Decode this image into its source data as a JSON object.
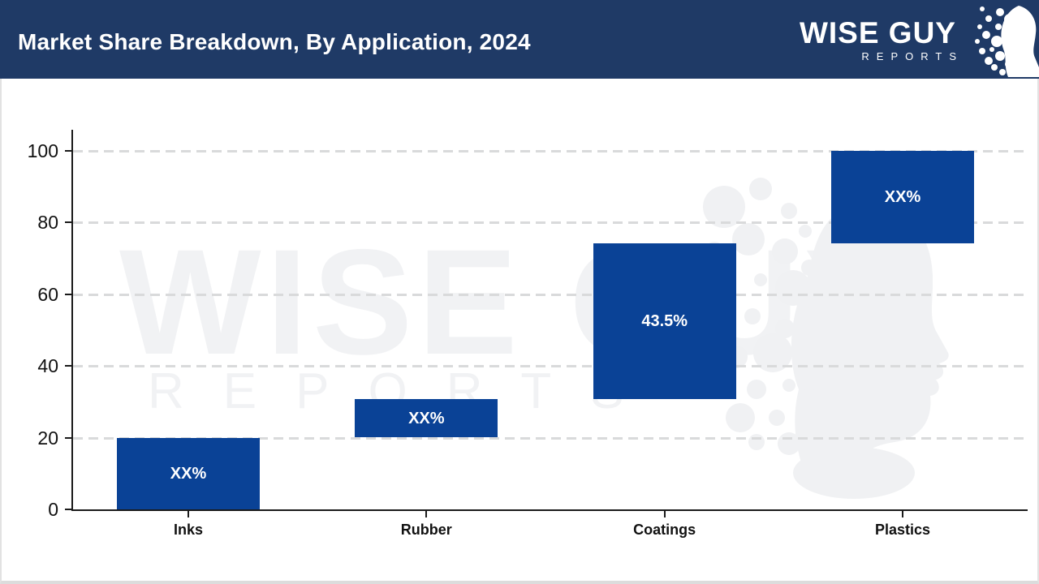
{
  "header": {
    "title": "Market Share Breakdown, By Application, 2024",
    "background": "#1f3a66",
    "logo": {
      "line1": "WISE GUY",
      "line2": "REPORTS"
    }
  },
  "watermark": {
    "line1": "WISE GUY",
    "line2": "REPORTS",
    "color": "#f1f2f4"
  },
  "chart_data": {
    "type": "bar",
    "subtype": "floating-waterfall-columns",
    "title": "Market Share Breakdown, By Application, 2024",
    "categories": [
      "Inks",
      "Rubber",
      "Coatings",
      "Plastics"
    ],
    "series": [
      {
        "name": "Market Share (%)",
        "ranges": [
          [
            0,
            19.8
          ],
          [
            20.1,
            30.8
          ],
          [
            30.8,
            74.3
          ],
          [
            74.3,
            100
          ]
        ]
      }
    ],
    "bar_labels": [
      "XX%",
      "XX%",
      "43.5%",
      "XX%"
    ],
    "xlabel": "",
    "ylabel": "",
    "ylim": [
      0,
      100
    ],
    "yticks": [
      0,
      20,
      40,
      60,
      80,
      100
    ],
    "grid": "horizontal-dashed",
    "legend": "none",
    "bar_color": "#0a4296",
    "bar_label_color": "#ffffff",
    "axis_color": "#1a1a1a",
    "gridline_color": "#d9dadb"
  }
}
